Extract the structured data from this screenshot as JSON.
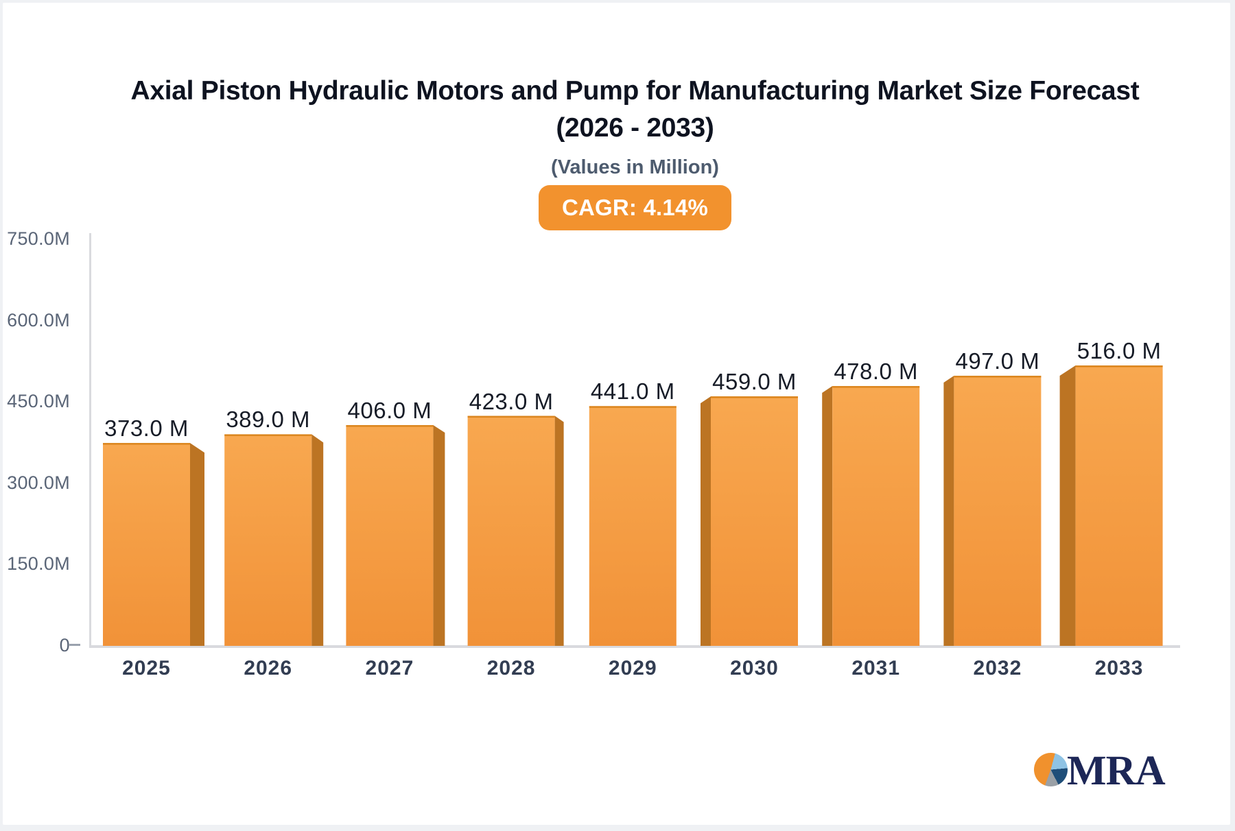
{
  "page": {
    "background_color": "#eff1f4",
    "card_color": "#ffffff"
  },
  "header": {
    "title_line1": "Axial Piston Hydraulic Motors and Pump for Manufacturing Market Size Forecast",
    "title_line2": "(2026 - 2033)",
    "subtitle": "(Values in Million)",
    "cagr_badge": "CAGR: 4.14%",
    "title_color": "#0e1320",
    "subtitle_color": "#4d5b6e",
    "badge_color": "#f2922e",
    "badge_text_color": "#ffffff"
  },
  "chart_data": {
    "type": "bar",
    "title": "Axial Piston Hydraulic Motors and Pump for Manufacturing Market Size Forecast (2026 - 2033)",
    "subtitle": "(Values in Million)",
    "annotation": "CAGR: 4.14%",
    "unit": "Million",
    "categories": [
      "2025",
      "2026",
      "2027",
      "2028",
      "2029",
      "2030",
      "2031",
      "2032",
      "2033"
    ],
    "values": [
      373.0,
      389.0,
      406.0,
      423.0,
      441.0,
      459.0,
      478.0,
      497.0,
      516.0
    ],
    "bar_labels": [
      "373.0 M",
      "389.0 M",
      "406.0 M",
      "423.0 M",
      "441.0 M",
      "459.0 M",
      "478.0 M",
      "497.0 M",
      "516.0 M"
    ],
    "y_ticks": [
      "750.0M",
      "600.0M",
      "450.0M",
      "300.0M",
      "150.0M",
      "0"
    ],
    "y_tick_values": [
      750,
      600,
      450,
      300,
      150,
      0
    ],
    "ylim": [
      0,
      750
    ],
    "grid": false,
    "legend": false,
    "style_3d": true,
    "colors": {
      "bar_top": "#f8a850",
      "bar_bottom": "#f19238",
      "bar_top_edge": "#db861f",
      "bar_side": "#bc7423",
      "axis_line": "#d9dade",
      "y_label": "#5a6577",
      "x_label": "#323d52",
      "value_label": "#171c27"
    }
  },
  "logo": {
    "text": "MRA",
    "text_color": "#1d2757",
    "pie_lightblue": "#8fc3e4",
    "pie_navy": "#1f4e79",
    "pie_gray": "#9aa0a6",
    "pie_orange": "#f0912d"
  }
}
